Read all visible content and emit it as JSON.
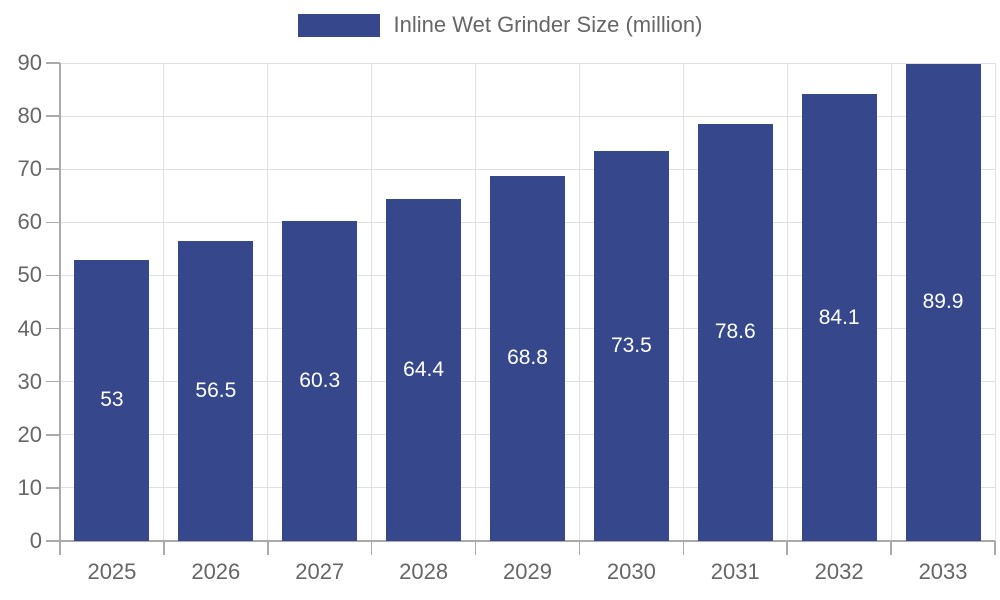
{
  "chart_data": {
    "type": "bar",
    "title": "Inline Wet Grinder Size (million)",
    "legend": {
      "label": "Inline Wet Grinder Size (million)",
      "position": "top-center"
    },
    "categories": [
      "2025",
      "2026",
      "2027",
      "2028",
      "2029",
      "2030",
      "2031",
      "2032",
      "2033"
    ],
    "series": [
      {
        "name": "Inline Wet Grinder Size (million)",
        "values": [
          53,
          56.5,
          60.3,
          64.4,
          68.8,
          73.5,
          78.6,
          84.1,
          89.9
        ],
        "value_labels": [
          "53",
          "56.5",
          "60.3",
          "64.4",
          "68.8",
          "73.5",
          "78.6",
          "84.1",
          "89.9"
        ]
      }
    ],
    "xlabel": "",
    "ylabel": "",
    "ylim": [
      0,
      90
    ],
    "yticks": [
      0,
      10,
      20,
      30,
      40,
      50,
      60,
      70,
      80,
      90
    ],
    "grid": "on",
    "value_label_position": "inside-center",
    "colors": {
      "bar": "#36478b",
      "value_label": "#ffffff",
      "axis_text": "#666666",
      "legend_text": "#666666",
      "gridline": "#e0e0e0",
      "axis_line": "#aaaaaa",
      "background": "#ffffff"
    }
  }
}
